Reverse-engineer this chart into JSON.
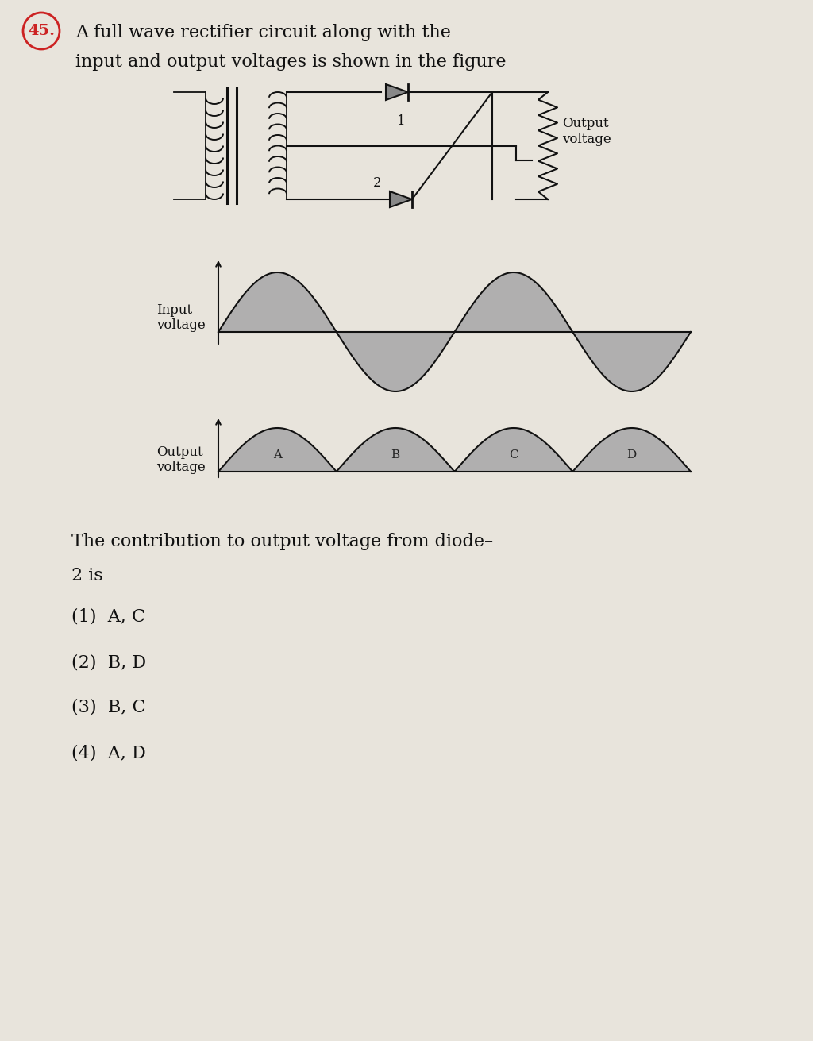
{
  "bg_color": "#e8e4dc",
  "text_color": "#111111",
  "wave_fill_color": "#aaaaaa",
  "wave_line_color": "#111111",
  "question_number": "45.",
  "q_line1": "A full wave rectifier circuit along with the",
  "q_line2": "input and output voltages is shown in the figure",
  "diode1_label": "1",
  "diode2_label": "2",
  "output_label": "Output\nvoltage",
  "input_voltage_label": "Input\nvoltage",
  "output_voltage_label": "Output\nvoltage",
  "abcd_labels": [
    "A",
    "B",
    "C",
    "D"
  ],
  "bottom_line1": "The contribution to output voltage from diode–",
  "bottom_line2": "2 is",
  "options": [
    "(1)  A, C",
    "(2)  B, D",
    "(3)  B, C",
    "(4)  A, D"
  ],
  "circ_color": "#cc2222",
  "n_primary_loops": 9,
  "n_secondary_loops": 10,
  "wave_amp_input": 75,
  "wave_amp_output": 55,
  "n_cycles": 2
}
